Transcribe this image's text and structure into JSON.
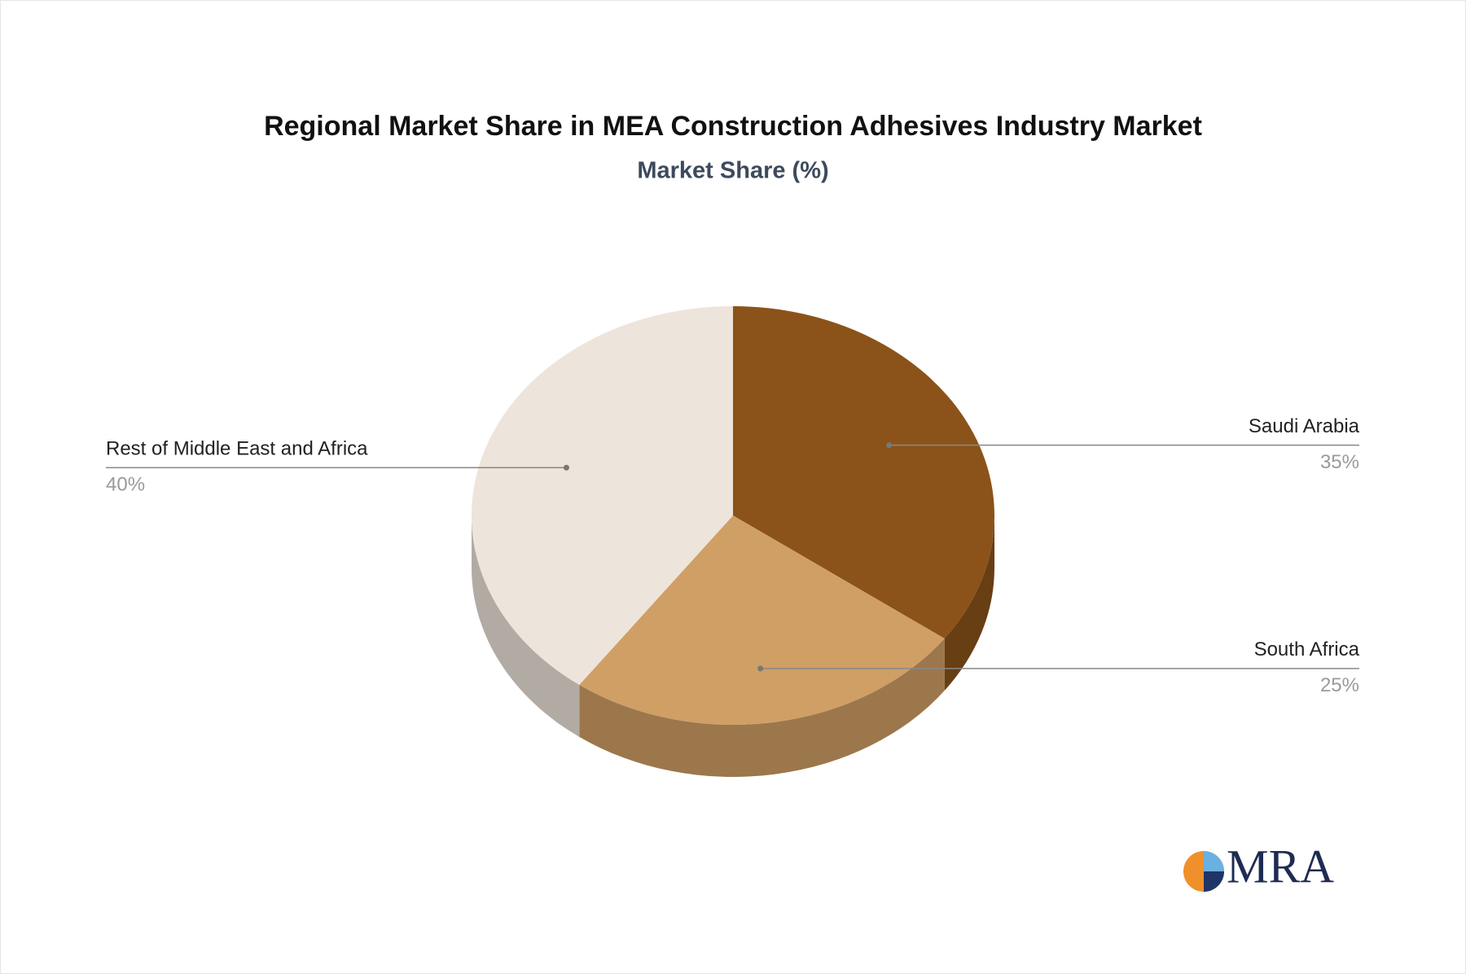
{
  "chart_data": {
    "type": "pie3d",
    "title": "Regional Market Share in MEA Construction Adhesives Industry Market",
    "subtitle": "Market Share (%)",
    "categories": [
      "Saudi Arabia",
      "South Africa",
      "Rest of Middle East and Africa"
    ],
    "values": [
      35,
      25,
      40
    ],
    "value_labels": [
      "35%",
      "25%",
      "40%"
    ],
    "colors": [
      "#8b5319",
      "#d09f65",
      "#ede4db"
    ]
  },
  "logo_text": "MRA"
}
